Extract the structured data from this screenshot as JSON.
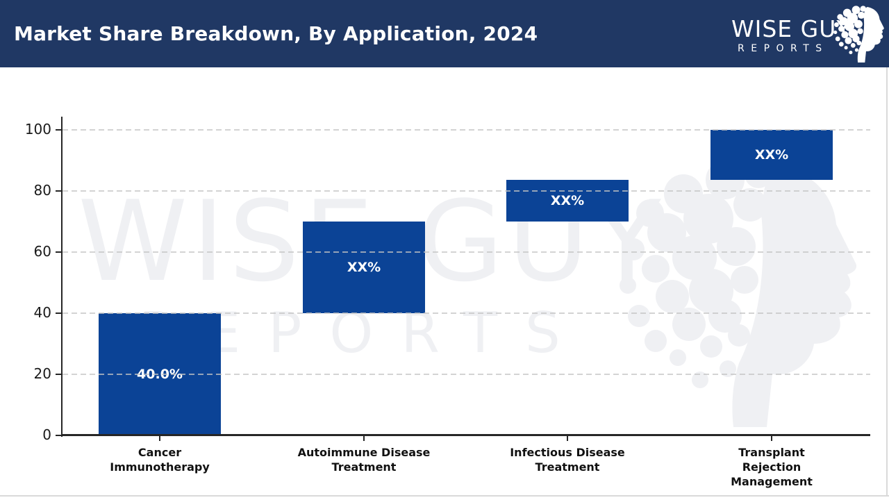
{
  "header": {
    "title": "Market Share Breakdown, By Application, 2024",
    "brand_line1": "WISE GUY",
    "brand_line2": "REPORTS"
  },
  "watermark": {
    "line1": "WISE GUY",
    "line2": "REPORTS"
  },
  "colors": {
    "header_bg": "#203864",
    "bar": "#0b4396",
    "bar_label": "#ffffff",
    "grid": "#c4c4c4",
    "axis": "#262626",
    "watermark": "#eff0f3",
    "hairline": "#d9d9d9"
  },
  "chart_data": {
    "type": "bar",
    "subtype": "waterfall",
    "title": "Market Share Breakdown, By Application, 2024",
    "categories": [
      "Cancer\nImmunotherapy",
      "Autoimmune Disease\nTreatment",
      "Infectious Disease\nTreatment",
      "Transplant\nRejection\nManagement"
    ],
    "segments": [
      {
        "category": "Cancer Immunotherapy",
        "start": 0,
        "end": 40,
        "label": "40.0%"
      },
      {
        "category": "Autoimmune Disease Treatment",
        "start": 40,
        "end": 70,
        "label": "XX%"
      },
      {
        "category": "Infectious Disease Treatment",
        "start": 70,
        "end": 83.6,
        "label": "XX%"
      },
      {
        "category": "Transplant Rejection Management",
        "start": 83.6,
        "end": 100,
        "label": "XX%"
      }
    ],
    "yticks": [
      0,
      20,
      40,
      60,
      80,
      100
    ],
    "ylim": [
      0,
      105
    ],
    "xlabel": "",
    "ylabel": "",
    "grid": "horizontal dashed, drawn over bars",
    "legend": "none"
  }
}
